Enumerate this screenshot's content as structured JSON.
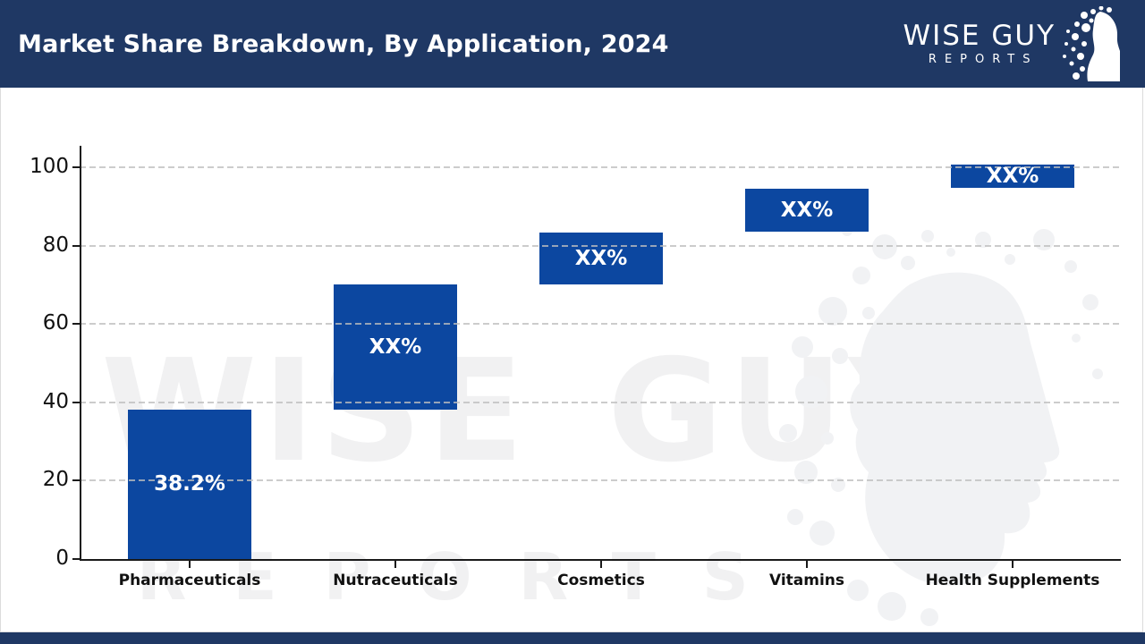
{
  "header": {
    "title": "Market Share Breakdown, By Application, 2024",
    "logo_line1": "WISE GUY",
    "logo_line2": "REPORTS"
  },
  "watermark": {
    "line1": "WISE GUY",
    "line2": "REPORTS"
  },
  "chart_data": {
    "type": "bar",
    "subtype": "waterfall",
    "title": "Market Share Breakdown, By Application, 2024",
    "categories": [
      "Pharmaceuticals",
      "Nutraceuticals",
      "Cosmetics",
      "Vitamins",
      "Health Supplements"
    ],
    "segments": [
      {
        "category": "Pharmaceuticals",
        "start": 0,
        "end": 38.2,
        "label": "38.2%"
      },
      {
        "category": "Nutraceuticals",
        "start": 38.2,
        "end": 70.0,
        "label": "XX%"
      },
      {
        "category": "Cosmetics",
        "start": 70.0,
        "end": 83.4,
        "label": "XX%"
      },
      {
        "category": "Vitamins",
        "start": 83.6,
        "end": 94.5,
        "label": "XX%"
      },
      {
        "category": "Health Supplements",
        "start": 94.8,
        "end": 100.7,
        "label": "XX%"
      }
    ],
    "xlabel": "",
    "ylabel": "",
    "yticks": [
      0,
      20,
      40,
      60,
      80,
      100
    ],
    "ylim": [
      0,
      105.5
    ],
    "grid": "horizontal-dashed",
    "legend_position": "none",
    "bar_color": "#0c47a0",
    "bar_label_color": "#ffffff",
    "axis_color": "#1a1a1a",
    "grid_color": "#d9d9d9"
  },
  "colors": {
    "header_bg": "#1f3864",
    "footer_bg": "#1f3864",
    "page_bg": "#ffffff",
    "watermark": "#f1f1f2"
  }
}
